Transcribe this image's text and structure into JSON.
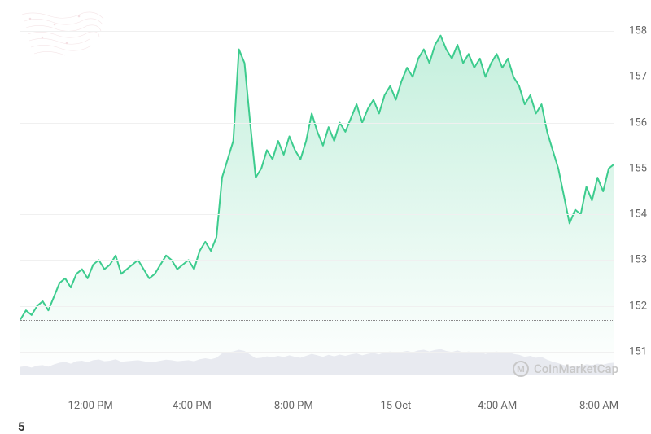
{
  "chart": {
    "type": "area",
    "line_color": "#3dcc8e",
    "line_width": 2,
    "fill_top_color": "rgba(61,204,142,0.30)",
    "fill_bottom_color": "rgba(61,204,142,0.00)",
    "background_color": "#ffffff",
    "grid_color": "#f0f0f0",
    "dotted_color": "#888888",
    "ylim": [
      150.5,
      158.5
    ],
    "ytick_step": 1,
    "y_ticks": [
      151,
      152,
      153,
      154,
      155,
      156,
      157,
      158
    ],
    "x_ticks": [
      {
        "pos": 0.118,
        "label": "12:00 PM"
      },
      {
        "pos": 0.289,
        "label": "4:00 PM"
      },
      {
        "pos": 0.46,
        "label": "8:00 PM"
      },
      {
        "pos": 0.632,
        "label": "15 Oct"
      },
      {
        "pos": 0.803,
        "label": "4:00 AM"
      },
      {
        "pos": 0.974,
        "label": "8:00 AM"
      }
    ],
    "dotted_y": 151.7,
    "series": [
      151.7,
      151.9,
      151.8,
      152.0,
      152.1,
      151.9,
      152.2,
      152.5,
      152.6,
      152.4,
      152.7,
      152.8,
      152.6,
      152.9,
      153.0,
      152.8,
      152.9,
      153.1,
      152.7,
      152.8,
      152.9,
      153.0,
      152.8,
      152.6,
      152.7,
      152.9,
      153.1,
      153.0,
      152.8,
      152.9,
      153.0,
      152.8,
      153.2,
      153.4,
      153.2,
      153.5,
      154.8,
      155.2,
      155.6,
      157.6,
      157.3,
      156.0,
      154.8,
      155.0,
      155.4,
      155.2,
      155.6,
      155.3,
      155.7,
      155.4,
      155.2,
      155.6,
      156.2,
      155.8,
      155.5,
      155.9,
      155.6,
      156.0,
      155.8,
      156.1,
      156.4,
      156.0,
      156.3,
      156.5,
      156.2,
      156.6,
      156.8,
      156.5,
      156.9,
      157.2,
      157.0,
      157.4,
      157.6,
      157.3,
      157.7,
      157.9,
      157.6,
      157.4,
      157.7,
      157.3,
      157.5,
      157.2,
      157.4,
      157.0,
      157.3,
      157.5,
      157.2,
      157.4,
      157.0,
      156.8,
      156.4,
      156.6,
      156.2,
      156.4,
      155.8,
      155.4,
      155.0,
      154.4,
      153.8,
      154.1,
      154.0,
      154.6,
      154.3,
      154.8,
      154.5,
      155.0,
      155.1
    ],
    "volume_color": "#e8eaf0",
    "volume": [
      0.25,
      0.28,
      0.22,
      0.3,
      0.32,
      0.26,
      0.35,
      0.42,
      0.45,
      0.38,
      0.48,
      0.5,
      0.44,
      0.52,
      0.55,
      0.48,
      0.5,
      0.56,
      0.46,
      0.48,
      0.5,
      0.52,
      0.48,
      0.44,
      0.46,
      0.5,
      0.54,
      0.52,
      0.48,
      0.5,
      0.52,
      0.48,
      0.56,
      0.6,
      0.56,
      0.62,
      0.8,
      0.85,
      0.88,
      0.95,
      0.9,
      0.75,
      0.6,
      0.62,
      0.68,
      0.64,
      0.7,
      0.65,
      0.72,
      0.66,
      0.62,
      0.7,
      0.78,
      0.72,
      0.66,
      0.74,
      0.68,
      0.75,
      0.7,
      0.76,
      0.8,
      0.72,
      0.78,
      0.82,
      0.76,
      0.84,
      0.88,
      0.8,
      0.86,
      0.9,
      0.85,
      0.92,
      0.95,
      0.88,
      0.94,
      0.98,
      0.9,
      0.86,
      0.92,
      0.84,
      0.88,
      0.82,
      0.86,
      0.78,
      0.84,
      0.88,
      0.82,
      0.86,
      0.78,
      0.74,
      0.66,
      0.7,
      0.62,
      0.66,
      0.54,
      0.46,
      0.4,
      0.32,
      0.26,
      0.3,
      0.28,
      0.36,
      0.32,
      0.38,
      0.34,
      0.4,
      0.42
    ]
  },
  "watermark": {
    "text": "CoinMarketCap",
    "icon_glyph": "M"
  },
  "bottom_left_number": "5",
  "y_label_fontsize": 13,
  "x_label_fontsize": 13,
  "label_color": "#666666"
}
